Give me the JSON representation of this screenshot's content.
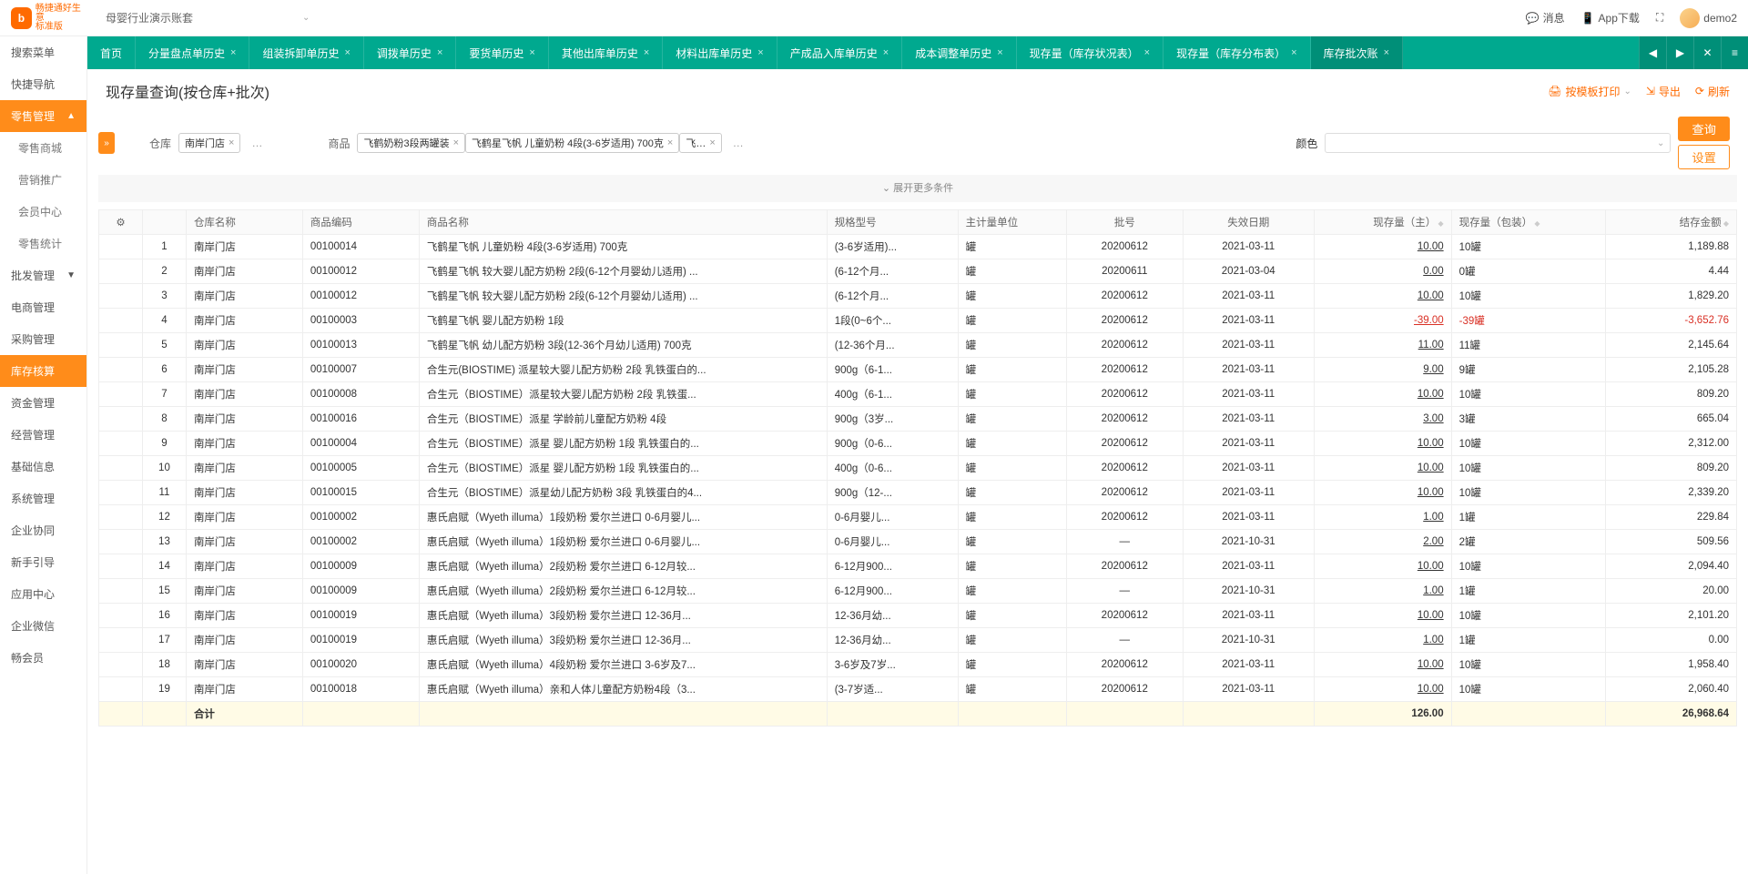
{
  "logo": {
    "brand_cn": "畅捷通好生意",
    "edition": "标准版"
  },
  "topbar": {
    "account": "母婴行业演示账套",
    "msg": "消息",
    "app": "App下载",
    "user": "demo2"
  },
  "sidebar": [
    {
      "label": "搜索菜单"
    },
    {
      "label": "快捷导航"
    },
    {
      "label": "零售管理",
      "active": true,
      "expand": "▲"
    },
    {
      "label": "零售商城",
      "sub": true
    },
    {
      "label": "营销推广",
      "sub": true
    },
    {
      "label": "会员中心",
      "sub": true
    },
    {
      "label": "零售统计",
      "sub": true
    },
    {
      "label": "批发管理",
      "expand": "▼"
    },
    {
      "label": "电商管理"
    },
    {
      "label": "采购管理"
    },
    {
      "label": "库存核算",
      "active": true
    },
    {
      "label": "资金管理"
    },
    {
      "label": "经营管理"
    },
    {
      "label": "基础信息"
    },
    {
      "label": "系统管理"
    },
    {
      "label": "企业协同"
    },
    {
      "label": "新手引导"
    },
    {
      "label": "应用中心"
    },
    {
      "label": "企业微信"
    },
    {
      "label": "畅会员"
    }
  ],
  "tabs": [
    {
      "label": "首页",
      "close": false
    },
    {
      "label": "分量盘点单历史",
      "close": true
    },
    {
      "label": "组装拆卸单历史",
      "close": true
    },
    {
      "label": "调拨单历史",
      "close": true
    },
    {
      "label": "要货单历史",
      "close": true
    },
    {
      "label": "其他出库单历史",
      "close": true
    },
    {
      "label": "材料出库单历史",
      "close": true
    },
    {
      "label": "产成品入库单历史",
      "close": true
    },
    {
      "label": "成本调整单历史",
      "close": true
    },
    {
      "label": "现存量（库存状况表）",
      "close": true
    },
    {
      "label": "现存量（库存分布表）",
      "close": true
    },
    {
      "label": "库存批次账",
      "close": true,
      "active": true
    }
  ],
  "page": {
    "title": "现存量查询(按仓库+批次)",
    "print": "按模板打印",
    "export": "导出",
    "refresh": "刷新"
  },
  "filter": {
    "wh_label": "仓库",
    "wh_chip": "南岸门店",
    "goods_label": "商品",
    "goods_chips": [
      "飞鹤奶粉3段两罐装",
      "飞鹤星飞帆 儿童奶粉 4段(3-6岁适用) 700克",
      "飞…"
    ],
    "color_label": "颜色",
    "query": "查询",
    "settings": "设置",
    "expand": "⌄ 展开更多条件"
  },
  "cols": [
    "",
    "",
    "仓库名称",
    "商品编码",
    "商品名称",
    "规格型号",
    "主计量单位",
    "批号",
    "失效日期",
    "现存量（主）",
    "现存量（包装）",
    "结存金额"
  ],
  "rows": [
    {
      "i": 1,
      "wh": "南岸门店",
      "code": "00100014",
      "name": "飞鹤星飞帆 儿童奶粉 4段(3-6岁适用) 700克",
      "spec": "(3-6岁适用)...",
      "unit": "罐",
      "batch": "20200612",
      "exp": "2021-03-11",
      "qty": "10.00",
      "pkg": "10罐",
      "amt": "1,189.88"
    },
    {
      "i": 2,
      "wh": "南岸门店",
      "code": "00100012",
      "name": "飞鹤星飞帆 较大婴儿配方奶粉 2段(6-12个月婴幼儿适用) ...",
      "spec": "(6-12个月...",
      "unit": "罐",
      "batch": "20200611",
      "exp": "2021-03-04",
      "qty": "0.00",
      "pkg": "0罐",
      "amt": "4.44"
    },
    {
      "i": 3,
      "wh": "南岸门店",
      "code": "00100012",
      "name": "飞鹤星飞帆 较大婴儿配方奶粉 2段(6-12个月婴幼儿适用) ...",
      "spec": "(6-12个月...",
      "unit": "罐",
      "batch": "20200612",
      "exp": "2021-03-11",
      "qty": "10.00",
      "pkg": "10罐",
      "amt": "1,829.20"
    },
    {
      "i": 4,
      "wh": "南岸门店",
      "code": "00100003",
      "name": "飞鹤星飞帆 婴儿配方奶粉 1段",
      "spec": "1段(0~6个...",
      "unit": "罐",
      "batch": "20200612",
      "exp": "2021-03-11",
      "qty": "-39.00",
      "pkg": "-39罐",
      "amt": "-3,652.76",
      "neg": true
    },
    {
      "i": 5,
      "wh": "南岸门店",
      "code": "00100013",
      "name": "飞鹤星飞帆 幼儿配方奶粉 3段(12-36个月幼儿适用) 700克",
      "spec": "(12-36个月...",
      "unit": "罐",
      "batch": "20200612",
      "exp": "2021-03-11",
      "qty": "11.00",
      "pkg": "11罐",
      "amt": "2,145.64"
    },
    {
      "i": 6,
      "wh": "南岸门店",
      "code": "00100007",
      "name": "合生元(BIOSTIME) 派星较大婴儿配方奶粉 2段 乳铁蛋白的...",
      "spec": "900g（6-1...",
      "unit": "罐",
      "batch": "20200612",
      "exp": "2021-03-11",
      "qty": "9.00",
      "pkg": "9罐",
      "amt": "2,105.28"
    },
    {
      "i": 7,
      "wh": "南岸门店",
      "code": "00100008",
      "name": "合生元（BIOSTIME）派星较大婴儿配方奶粉 2段 乳铁蛋...",
      "spec": "400g（6-1...",
      "unit": "罐",
      "batch": "20200612",
      "exp": "2021-03-11",
      "qty": "10.00",
      "pkg": "10罐",
      "amt": "809.20"
    },
    {
      "i": 8,
      "wh": "南岸门店",
      "code": "00100016",
      "name": "合生元（BIOSTIME）派星 学龄前儿童配方奶粉 4段",
      "spec": "900g（3岁...",
      "unit": "罐",
      "batch": "20200612",
      "exp": "2021-03-11",
      "qty": "3.00",
      "pkg": "3罐",
      "amt": "665.04"
    },
    {
      "i": 9,
      "wh": "南岸门店",
      "code": "00100004",
      "name": "合生元（BIOSTIME）派星 婴儿配方奶粉 1段 乳铁蛋白的...",
      "spec": "900g（0-6...",
      "unit": "罐",
      "batch": "20200612",
      "exp": "2021-03-11",
      "qty": "10.00",
      "pkg": "10罐",
      "amt": "2,312.00"
    },
    {
      "i": 10,
      "wh": "南岸门店",
      "code": "00100005",
      "name": "合生元（BIOSTIME）派星 婴儿配方奶粉 1段 乳铁蛋白的...",
      "spec": "400g（0-6...",
      "unit": "罐",
      "batch": "20200612",
      "exp": "2021-03-11",
      "qty": "10.00",
      "pkg": "10罐",
      "amt": "809.20"
    },
    {
      "i": 11,
      "wh": "南岸门店",
      "code": "00100015",
      "name": "合生元（BIOSTIME）派星幼儿配方奶粉 3段 乳铁蛋白的4...",
      "spec": "900g（12-...",
      "unit": "罐",
      "batch": "20200612",
      "exp": "2021-03-11",
      "qty": "10.00",
      "pkg": "10罐",
      "amt": "2,339.20"
    },
    {
      "i": 12,
      "wh": "南岸门店",
      "code": "00100002",
      "name": "惠氏启赋（Wyeth illuma）1段奶粉 爱尔兰进口 0-6月婴儿...",
      "spec": "0-6月婴儿...",
      "unit": "罐",
      "batch": "20200612",
      "exp": "2021-03-11",
      "qty": "1.00",
      "pkg": "1罐",
      "amt": "229.84"
    },
    {
      "i": 13,
      "wh": "南岸门店",
      "code": "00100002",
      "name": "惠氏启赋（Wyeth illuma）1段奶粉 爱尔兰进口 0-6月婴儿...",
      "spec": "0-6月婴儿...",
      "unit": "罐",
      "batch": "—",
      "exp": "2021-10-31",
      "qty": "2.00",
      "pkg": "2罐",
      "amt": "509.56"
    },
    {
      "i": 14,
      "wh": "南岸门店",
      "code": "00100009",
      "name": "惠氏启赋（Wyeth illuma）2段奶粉 爱尔兰进口 6-12月较...",
      "spec": "6-12月900...",
      "unit": "罐",
      "batch": "20200612",
      "exp": "2021-03-11",
      "qty": "10.00",
      "pkg": "10罐",
      "amt": "2,094.40"
    },
    {
      "i": 15,
      "wh": "南岸门店",
      "code": "00100009",
      "name": "惠氏启赋（Wyeth illuma）2段奶粉 爱尔兰进口 6-12月较...",
      "spec": "6-12月900...",
      "unit": "罐",
      "batch": "—",
      "exp": "2021-10-31",
      "qty": "1.00",
      "pkg": "1罐",
      "amt": "20.00"
    },
    {
      "i": 16,
      "wh": "南岸门店",
      "code": "00100019",
      "name": "惠氏启赋（Wyeth illuma）3段奶粉 爱尔兰进口 12-36月...",
      "spec": "12-36月幼...",
      "unit": "罐",
      "batch": "20200612",
      "exp": "2021-03-11",
      "qty": "10.00",
      "pkg": "10罐",
      "amt": "2,101.20"
    },
    {
      "i": 17,
      "wh": "南岸门店",
      "code": "00100019",
      "name": "惠氏启赋（Wyeth illuma）3段奶粉 爱尔兰进口 12-36月...",
      "spec": "12-36月幼...",
      "unit": "罐",
      "batch": "—",
      "exp": "2021-10-31",
      "qty": "1.00",
      "pkg": "1罐",
      "amt": "0.00"
    },
    {
      "i": 18,
      "wh": "南岸门店",
      "code": "00100020",
      "name": "惠氏启赋（Wyeth illuma）4段奶粉 爱尔兰进口 3-6岁及7...",
      "spec": "3-6岁及7岁...",
      "unit": "罐",
      "batch": "20200612",
      "exp": "2021-03-11",
      "qty": "10.00",
      "pkg": "10罐",
      "amt": "1,958.40"
    },
    {
      "i": 19,
      "wh": "南岸门店",
      "code": "00100018",
      "name": "惠氏启赋（Wyeth illuma）亲和人体儿童配方奶粉4段（3...",
      "spec": "(3-7岁适...",
      "unit": "罐",
      "batch": "20200612",
      "exp": "2021-03-11",
      "qty": "10.00",
      "pkg": "10罐",
      "amt": "2,060.40"
    }
  ],
  "total": {
    "label": "合计",
    "qty": "126.00",
    "amt": "26,968.64"
  }
}
